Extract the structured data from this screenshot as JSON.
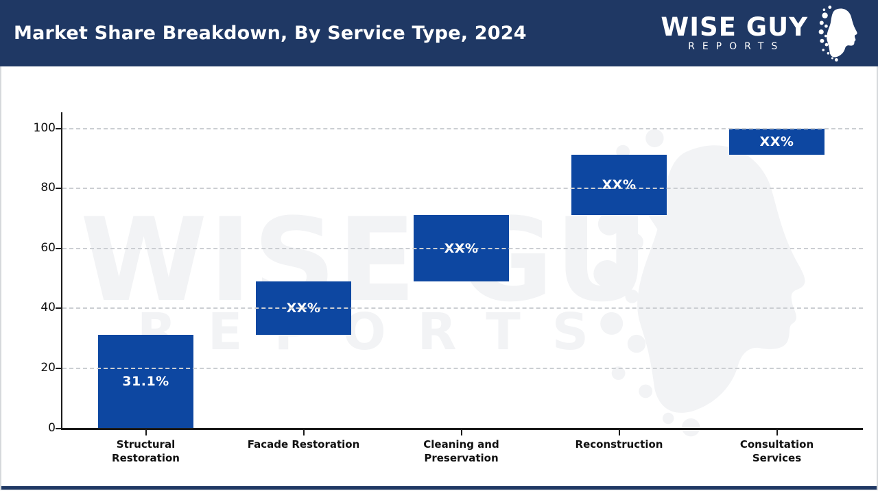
{
  "header": {
    "title": "Market Share Breakdown, By Service Type, 2024",
    "logo": {
      "line1": "WISE GUY",
      "line2": "REPORTS"
    }
  },
  "watermark": {
    "line1": "WISE GUY",
    "line2": "REPORTS"
  },
  "colors": {
    "header_bg": "#1f3864",
    "footer_bg": "#1f3864",
    "bar": "#0d47a1",
    "bar_label": "#ffffff",
    "grid": "#cbced2",
    "axis": "#1a1a1a",
    "watermark": "#f2f3f5"
  },
  "chart_data": {
    "type": "waterfall",
    "title": "Market Share Breakdown, By Service Type, 2024",
    "orientation": "vertical",
    "categories": [
      "Structural Restoration",
      "Facade Restoration",
      "Cleaning and Preservation",
      "Reconstruction",
      "Consultation Services"
    ],
    "category_label_lines": [
      [
        "Structural",
        "Restoration"
      ],
      [
        "Facade Restoration"
      ],
      [
        "Cleaning and",
        "Preservation"
      ],
      [
        "Reconstruction"
      ],
      [
        "Consultation",
        "Services"
      ]
    ],
    "segments": [
      {
        "category": "Structural Restoration",
        "start": 0,
        "end": 31.1,
        "label": "31.1%"
      },
      {
        "category": "Facade Restoration",
        "start": 31.1,
        "end": 48.9,
        "label": "XX%"
      },
      {
        "category": "Cleaning and Preservation",
        "start": 48.9,
        "end": 71.1,
        "label": "XX%"
      },
      {
        "category": "Reconstruction",
        "start": 71.1,
        "end": 91.1,
        "label": "XX%"
      },
      {
        "category": "Consultation Services",
        "start": 91.1,
        "end": 100,
        "label": "XX%"
      }
    ],
    "ylabel": "",
    "xlabel": "",
    "ylim": [
      0,
      105
    ],
    "yticks": [
      0,
      20,
      40,
      60,
      80,
      100
    ],
    "grid": "horizontal-dashed",
    "legend": "none",
    "bar_color": "#0d47a1",
    "value_label_color": "#ffffff"
  }
}
